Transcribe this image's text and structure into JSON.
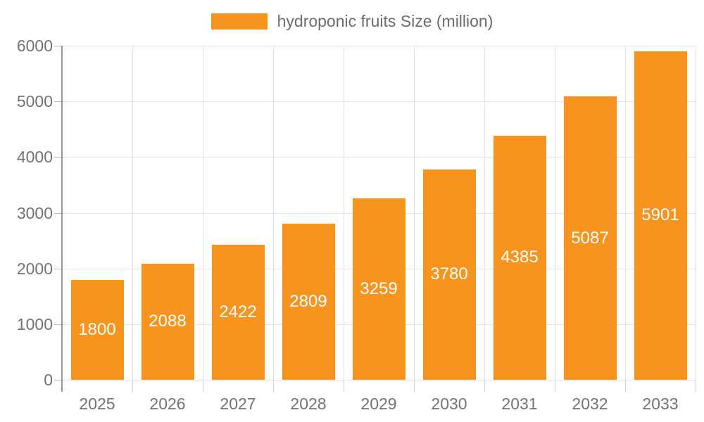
{
  "legend": {
    "label": "hydroponic fruits Size (million)"
  },
  "chart_data": {
    "type": "bar",
    "title": "",
    "xlabel": "",
    "ylabel": "",
    "categories": [
      "2025",
      "2026",
      "2027",
      "2028",
      "2029",
      "2030",
      "2031",
      "2032",
      "2033"
    ],
    "series": [
      {
        "name": "hydroponic fruits Size (million)",
        "values": [
          1800,
          2088,
          2422,
          2809,
          3259,
          3780,
          4385,
          5087,
          5901
        ]
      }
    ],
    "value_labels": [
      "1800",
      "2088",
      "2422",
      "2809",
      "3259",
      "3780",
      "4385",
      "5087",
      "5901"
    ],
    "ylim": [
      0,
      6000
    ],
    "yticks": [
      0,
      1000,
      2000,
      3000,
      4000,
      5000,
      6000
    ],
    "grid": true,
    "legend_position": "top-center",
    "bar_color": "#f7941e",
    "value_label_color": "#ffffff",
    "axis_label_color": "#737373",
    "gridline_color": "#e3e3e3",
    "axis_line_color": "#979797"
  }
}
